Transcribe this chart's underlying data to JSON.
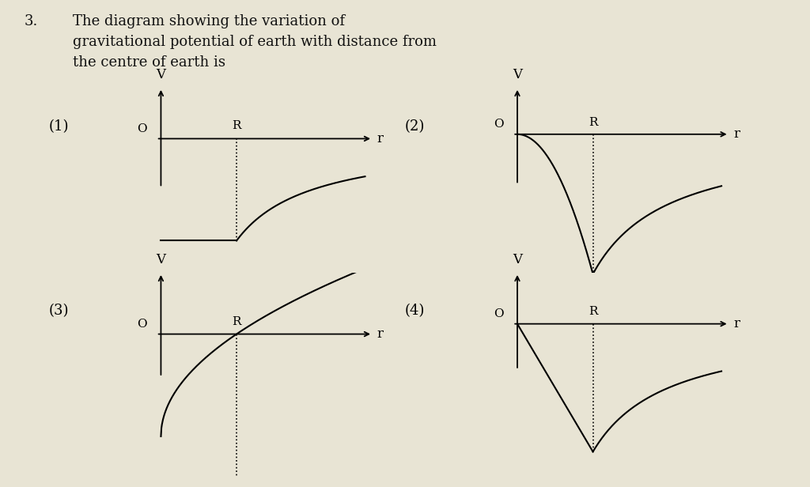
{
  "background_color": "#e8e4d4",
  "line_color": "#000000",
  "question_number": "3.",
  "question_text": "The diagram showing the variation of\ngravitational potential of earth with distance from\nthe centre of earth is",
  "diagram_labels": [
    "(1)",
    "(2)",
    "(3)",
    "(4)"
  ],
  "R": 1.0,
  "font_size_question": 13,
  "font_size_label": 13,
  "font_size_axis_label": 12
}
